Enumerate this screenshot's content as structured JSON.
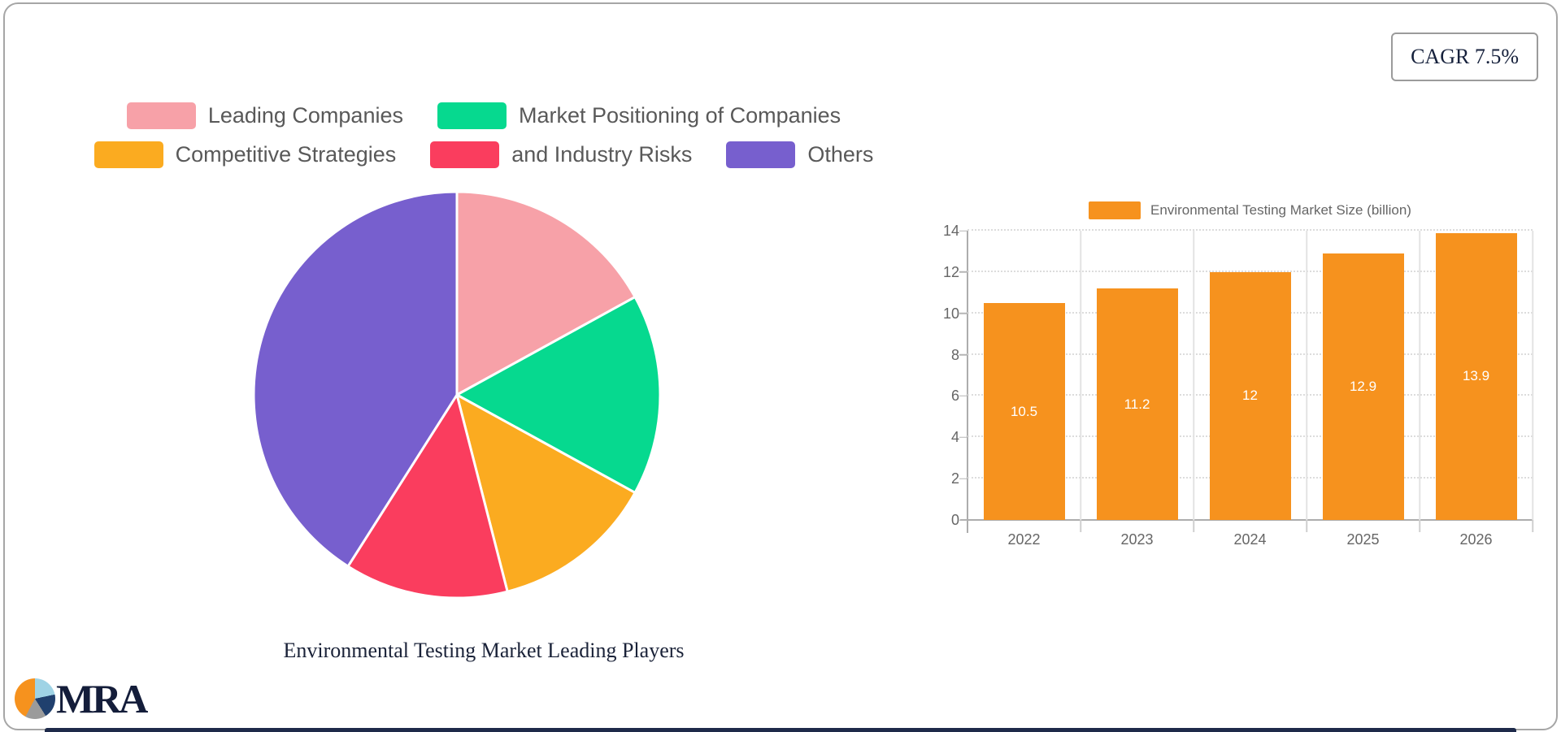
{
  "badge": {
    "label": "CAGR 7.5%"
  },
  "logo": {
    "text": "MRA"
  },
  "chart_data": [
    {
      "type": "pie",
      "title": "Environmental Testing Market Leading Players",
      "labels": [
        "Leading Companies",
        "Market Positioning of Companies",
        "Competitive Strategies",
        "and Industry Risks",
        "Others"
      ],
      "values": [
        17,
        16,
        13,
        13,
        41
      ],
      "colors": [
        "#f7a1a8",
        "#06d98f",
        "#fbab20",
        "#fa3d5e",
        "#775fce"
      ],
      "legend_position": "top",
      "legend_rows": [
        [
          "Leading Companies",
          "Market Positioning of Companies"
        ],
        [
          "Competitive Strategies",
          "and Industry Risks",
          "Others"
        ]
      ],
      "start_angle_deg": 0,
      "direction": "clockwise"
    },
    {
      "type": "bar",
      "categories": [
        "2022",
        "2023",
        "2024",
        "2025",
        "2026"
      ],
      "series": [
        {
          "name": "Environmental Testing Market Size (billion)",
          "values": [
            10.5,
            11.2,
            12,
            12.9,
            13.9
          ],
          "color": "#f6921e"
        }
      ],
      "value_labels": [
        "10.5",
        "11.2",
        "12",
        "12.9",
        "13.9"
      ],
      "ylim": [
        0,
        14
      ],
      "yticks": [
        0,
        2,
        4,
        6,
        8,
        10,
        12,
        14
      ],
      "grid": true,
      "legend_position": "top"
    }
  ]
}
